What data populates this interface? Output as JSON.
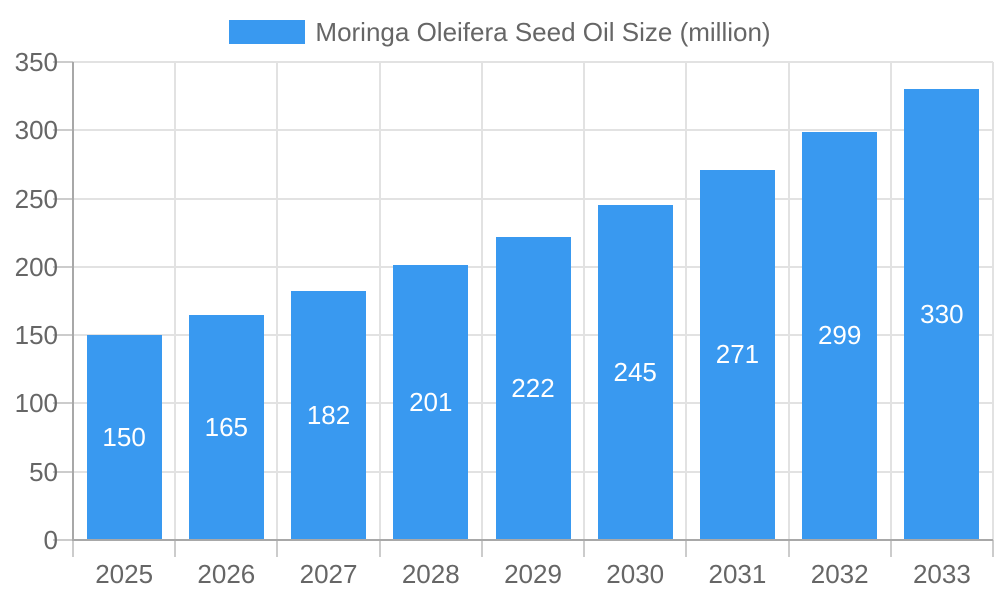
{
  "chart_data": {
    "type": "bar",
    "title": "Moringa Oleifera Seed Oil Size (million)",
    "legend_position": "top",
    "legend": [
      {
        "label": "Moringa Oleifera Seed Oil Size (million)",
        "color": "#3999f0"
      }
    ],
    "categories": [
      "2025",
      "2026",
      "2027",
      "2028",
      "2029",
      "2030",
      "2031",
      "2032",
      "2033"
    ],
    "series": [
      {
        "name": "Moringa Oleifera Seed Oil Size (million)",
        "values": [
          150,
          165,
          182,
          201,
          222,
          245,
          271,
          299,
          330
        ]
      }
    ],
    "value_labels": [
      "150",
      "165",
      "182",
      "201",
      "222",
      "245",
      "271",
      "299",
      "330"
    ],
    "xlabel": "",
    "ylabel": "",
    "ylim": [
      0,
      350
    ],
    "y_tick_step": 50,
    "y_ticks": [
      0,
      50,
      100,
      150,
      200,
      250,
      300,
      350
    ],
    "grid": true,
    "colors": {
      "bar": "#3999f0",
      "value_label": "#ffffff",
      "axis_text": "#666666",
      "grid_line": "#e2e2e2",
      "axis_line": "#a8a8a8",
      "tick_mark": "#cccccc",
      "background": "#ffffff"
    }
  }
}
